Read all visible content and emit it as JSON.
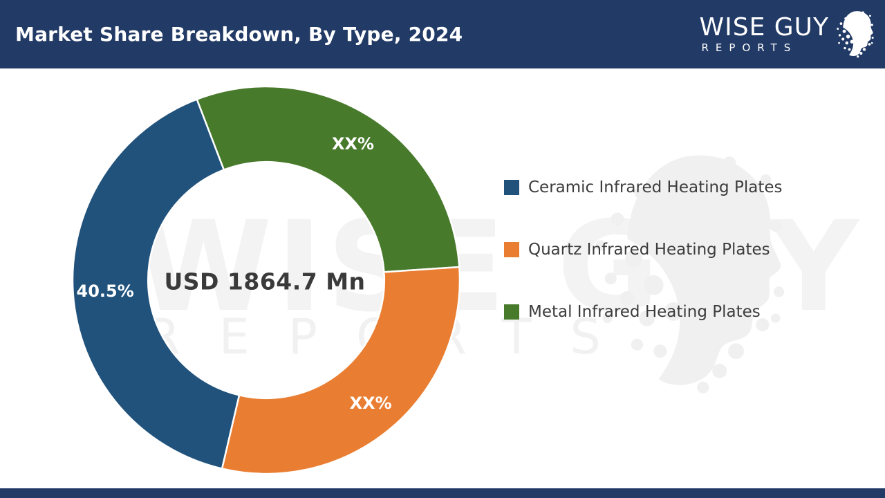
{
  "header": {
    "title": "Market Share Breakdown, By Type, 2024",
    "logo": {
      "line1": "WISE GUY",
      "line2": "REPORTS"
    }
  },
  "watermark": {
    "line1": "WISE GUY",
    "line2": "REPORTS"
  },
  "chart_data": {
    "type": "pie",
    "subtype": "donut",
    "title": "Market Share Breakdown, By Type, 2024",
    "center_label": "USD 1864.7 Mn",
    "start_angle_deg": -21,
    "direction": "clockwise",
    "inner_radius_ratio": 0.61,
    "legend_position": "right",
    "segments": [
      {
        "name": "Metal Infrared Heating Plates",
        "display_label": "XX%",
        "value": 29.75,
        "color": "#487A2C"
      },
      {
        "name": "Quartz Infrared Heating Plates",
        "display_label": "XX%",
        "value": 29.75,
        "color": "#E97E32"
      },
      {
        "name": "Ceramic Infrared Heating Plates",
        "display_label": "40.5%",
        "value": 40.5,
        "color": "#20527C"
      }
    ]
  },
  "legend": {
    "items": [
      {
        "label": "Ceramic Infrared Heating Plates",
        "color": "#20527C"
      },
      {
        "label": "Quartz Infrared Heating Plates",
        "color": "#E97E32"
      },
      {
        "label": "Metal Infrared Heating Plates",
        "color": "#487A2C"
      }
    ]
  },
  "colors": {
    "header_bg": "#223A66",
    "footer_bg": "#223A66",
    "segment_label_text": "#FFFFFF",
    "center_text": "#3A3A3A",
    "legend_text": "#3C3C3C"
  }
}
